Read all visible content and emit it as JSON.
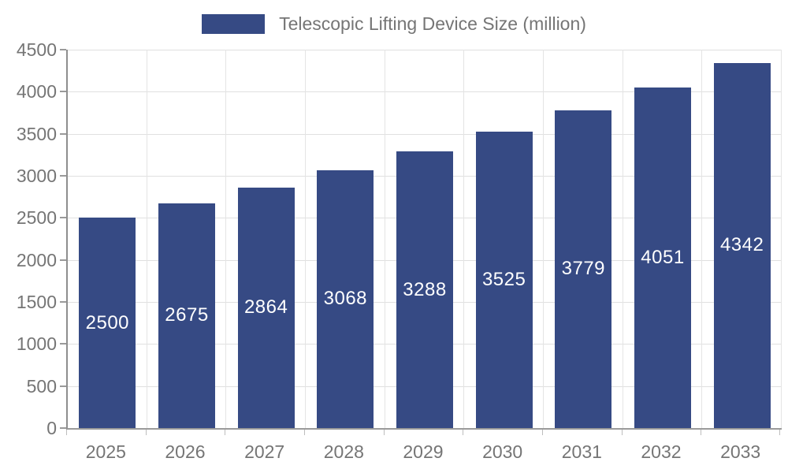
{
  "chart_data": {
    "type": "bar",
    "title": "Telescopic Lifting Device Size (million)",
    "legend_entries": [
      "Telescopic Lifting Device Size (million)"
    ],
    "legend_position": "top-center",
    "categories": [
      "2025",
      "2026",
      "2027",
      "2028",
      "2029",
      "2030",
      "2031",
      "2032",
      "2033"
    ],
    "series": [
      {
        "name": "Telescopic Lifting Device Size (million)",
        "values": [
          2500,
          2675,
          2864,
          3068,
          3288,
          3525,
          3779,
          4051,
          4342
        ]
      }
    ],
    "xlabel": "",
    "ylabel": "",
    "ylim": [
      0,
      4500
    ],
    "ytick_step": 500,
    "grid": true,
    "bar_color": "#364A84",
    "value_label_color": "#FFFFFF",
    "axis_text_color": "#757575",
    "gridline_color": "#E0E0E0"
  }
}
